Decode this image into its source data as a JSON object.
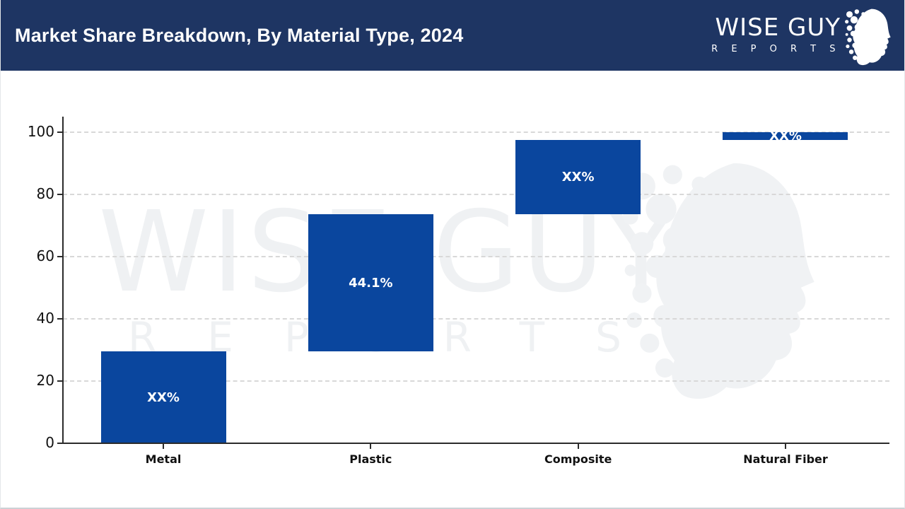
{
  "header": {
    "title": "Market Share Breakdown, By Material Type, 2024",
    "logo": {
      "line1": "WISE GUY",
      "line2": "R E P O R T S"
    }
  },
  "watermark": {
    "line1": "WISE GUY",
    "line2": "REPORTS"
  },
  "colors": {
    "header_navy": "#1e3563",
    "bar_blue": "#0a469e",
    "bar_label_white": "#ffffff",
    "gridline_gray": "#d8d8d8",
    "axis_dark": "#2b2b2b",
    "watermark_gray": "#eff1f3"
  },
  "chart_data": {
    "type": "bar",
    "subtype": "waterfall",
    "title": "Market Share Breakdown, By Material Type, 2024",
    "xlabel": "",
    "ylabel": "",
    "categories": [
      "Metal",
      "Plastic",
      "Composite",
      "Natural Fiber"
    ],
    "segments": [
      {
        "category": "Metal",
        "start": 0,
        "end": 29.5,
        "label": "XX%"
      },
      {
        "category": "Plastic",
        "start": 29.5,
        "end": 73.6,
        "label": "44.1%"
      },
      {
        "category": "Composite",
        "start": 73.6,
        "end": 97.4,
        "label": "XX%"
      },
      {
        "category": "Natural Fiber",
        "start": 97.4,
        "end": 100,
        "label": "XX%"
      }
    ],
    "y_ticks": [
      0,
      20,
      40,
      60,
      80,
      100
    ],
    "ylim": [
      0,
      100
    ],
    "grid": "horizontal dashed",
    "legend": "none",
    "bar_color": "#0a469e",
    "label_color": "#ffffff"
  }
}
